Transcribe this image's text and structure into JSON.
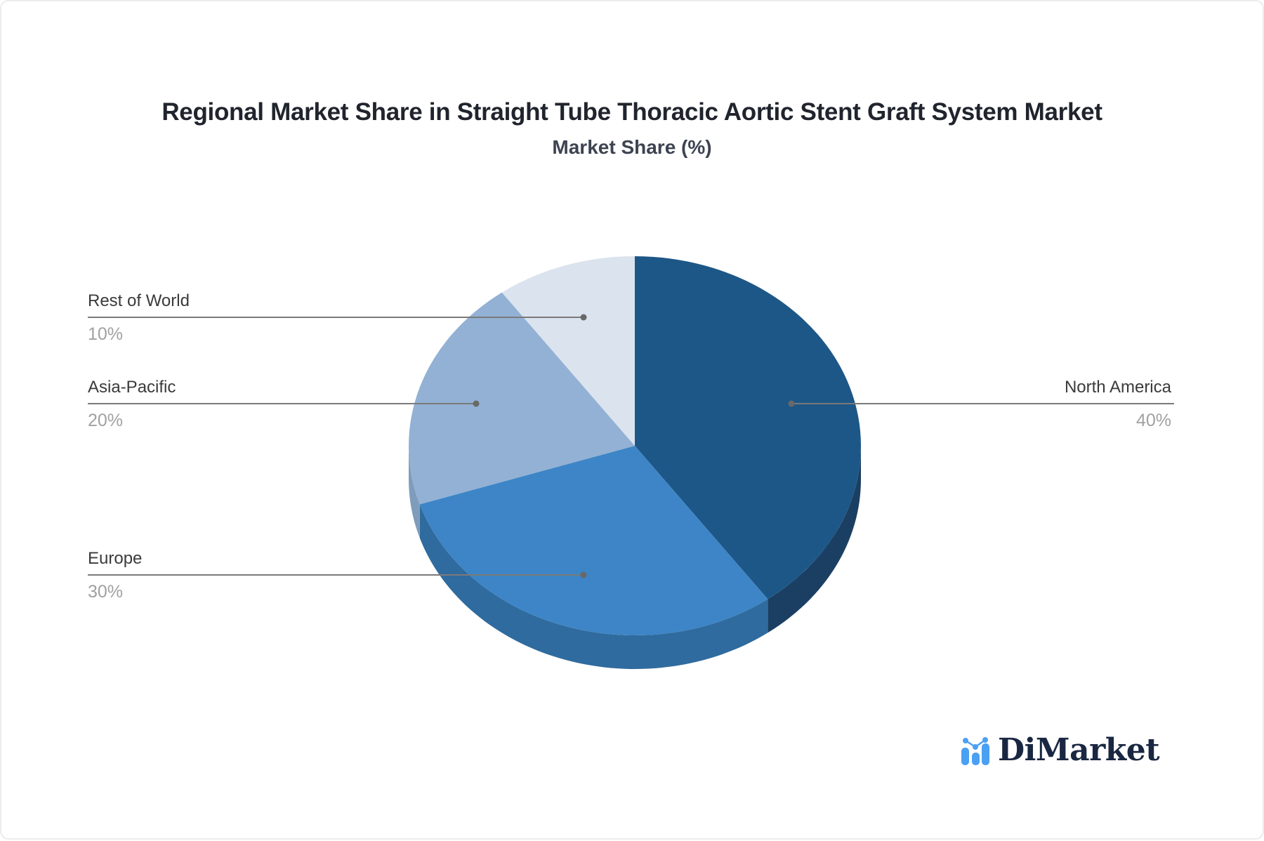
{
  "header": {
    "title": "Regional Market Share in Straight Tube Thoracic Aortic Stent Graft System Market",
    "subtitle": "Market Share (%)"
  },
  "chart_data": {
    "type": "pie",
    "style": "3d-pie",
    "title": "Regional Market Share in Straight Tube Thoracic Aortic Stent Graft System Market",
    "subtitle": "Market Share (%)",
    "unit": "%",
    "direction": "clockwise",
    "start_angle_deg": 90,
    "legend_position": "none",
    "label_style": "callout-lines",
    "categories": [
      "North America",
      "Europe",
      "Asia-Pacific",
      "Rest of World"
    ],
    "values": [
      40,
      30,
      20,
      10
    ],
    "labels_pct": [
      "40%",
      "30%",
      "20%",
      "10%"
    ],
    "slice_colors": [
      "#1d5787",
      "#3d85c6",
      "#92b1d4",
      "#dbe3ee"
    ],
    "slice_side_colors": [
      "#1a3f63",
      "#2f6b9e",
      "#7f9cbc",
      "#c3cfe0"
    ],
    "callout_line_color": "#7a7a7a",
    "callout_dot_color": "#686868",
    "label_color": "#3a3a3a",
    "pct_color": "#a1a1a1"
  },
  "branding": {
    "logo_text": "DiMarket",
    "logo_icon": "bar-line-chart-icon",
    "logo_text_color": "#1a2742",
    "logo_icon_color": "#4aa0f2"
  }
}
